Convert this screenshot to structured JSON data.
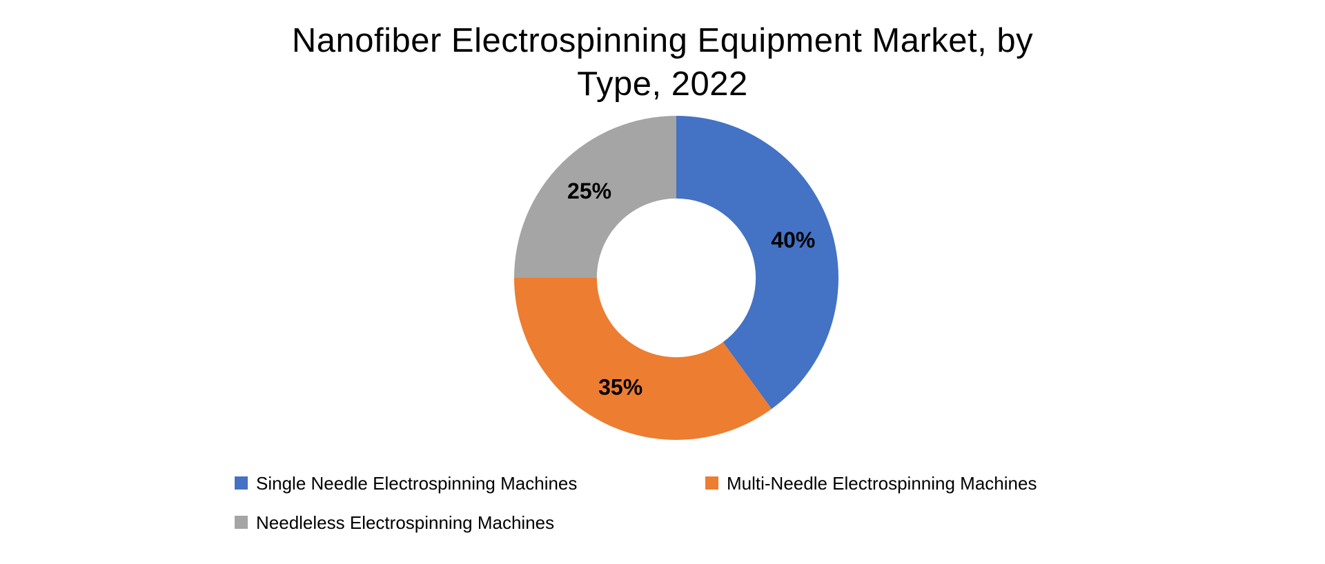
{
  "title_lines": [
    "Nanofiber Electrospinning Equipment Market, by",
    "Type, 2022"
  ],
  "chart_data": {
    "type": "pie",
    "subtype": "donut",
    "title": "Nanofiber Electrospinning Equipment Market, by Type, 2022",
    "categories": [
      "Single Needle Electrospinning Machines",
      "Multi-Needle Electrospinning Machines",
      "Needleless Electrospinning Machines"
    ],
    "values": [
      40,
      35,
      25
    ],
    "data_labels": [
      "40%",
      "35%",
      "25%"
    ],
    "colors": [
      "#4472C4",
      "#ED7D31",
      "#A5A5A5"
    ],
    "start_angle_deg": 0,
    "direction": "clockwise",
    "hole_ratio": 0.49,
    "data_label_color": "#000000",
    "legend_position": "bottom"
  },
  "legend": {
    "items": [
      {
        "label": "Single Needle Electrospinning Machines",
        "color": "#4472C4"
      },
      {
        "label": "Multi-Needle Electrospinning Machines",
        "color": "#ED7D31"
      },
      {
        "label": "Needleless Electrospinning Machines",
        "color": "#A5A5A5"
      }
    ]
  }
}
